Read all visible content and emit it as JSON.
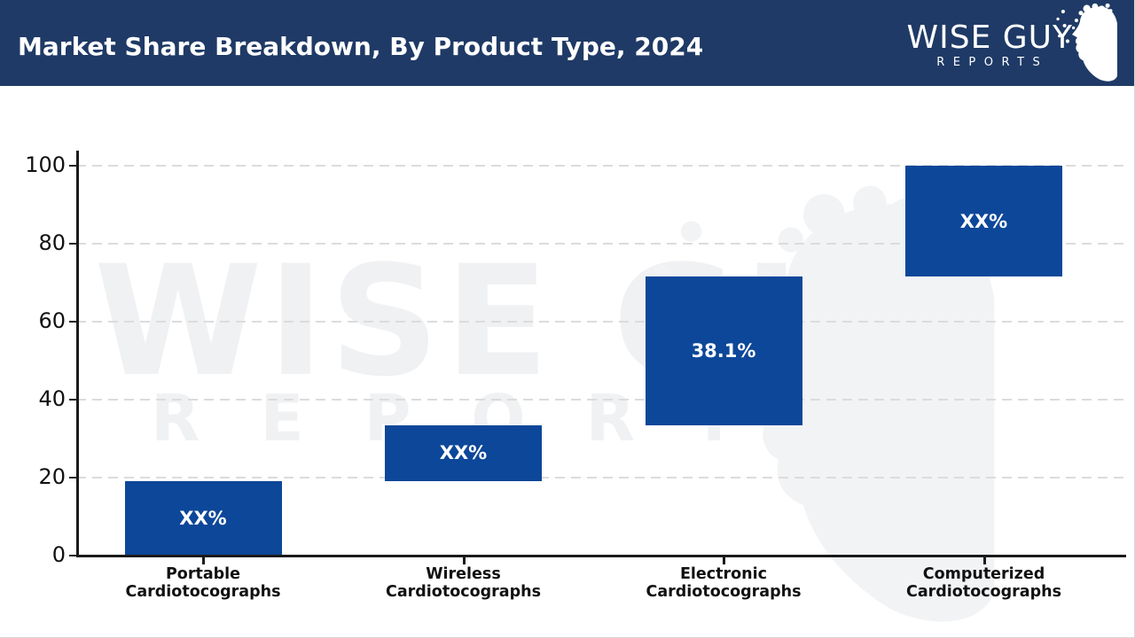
{
  "header": {
    "title": "Market Share Breakdown, By Product Type, 2024",
    "logo": {
      "line1": "WISE GUY",
      "line2": "REPORTS"
    }
  },
  "watermark": {
    "line1": "WISE GUY",
    "line2": "REPORTS"
  },
  "colors": {
    "header_bg": "#1f3a66",
    "bar": "#0d4799",
    "bar_label": "#ffffff",
    "grid": "#dcdcdc",
    "axis": "#1a1a1a",
    "watermark": "#f0f1f3"
  },
  "chart_data": {
    "type": "bar",
    "subtype": "floating-waterfall",
    "title": "Market Share Breakdown, By Product Type, 2024",
    "categories": [
      [
        "Portable",
        "Cardiotocographs"
      ],
      [
        "Wireless",
        "Cardiotocographs"
      ],
      [
        "Electronic",
        "Cardiotocographs"
      ],
      [
        "Computerized",
        "Cardiotocographs"
      ]
    ],
    "segments": [
      {
        "start": 0,
        "end": 19.1,
        "label": "XX%"
      },
      {
        "start": 19.1,
        "end": 33.4,
        "label": "XX%"
      },
      {
        "start": 33.4,
        "end": 71.5,
        "label": "38.1%"
      },
      {
        "start": 71.5,
        "end": 100,
        "label": "XX%"
      }
    ],
    "y_ticks": [
      0,
      20,
      40,
      60,
      80,
      100
    ],
    "ylim": [
      0,
      104
    ],
    "xlabel": "",
    "ylabel": "",
    "grid": "dashed-horizontal",
    "legend": false
  }
}
